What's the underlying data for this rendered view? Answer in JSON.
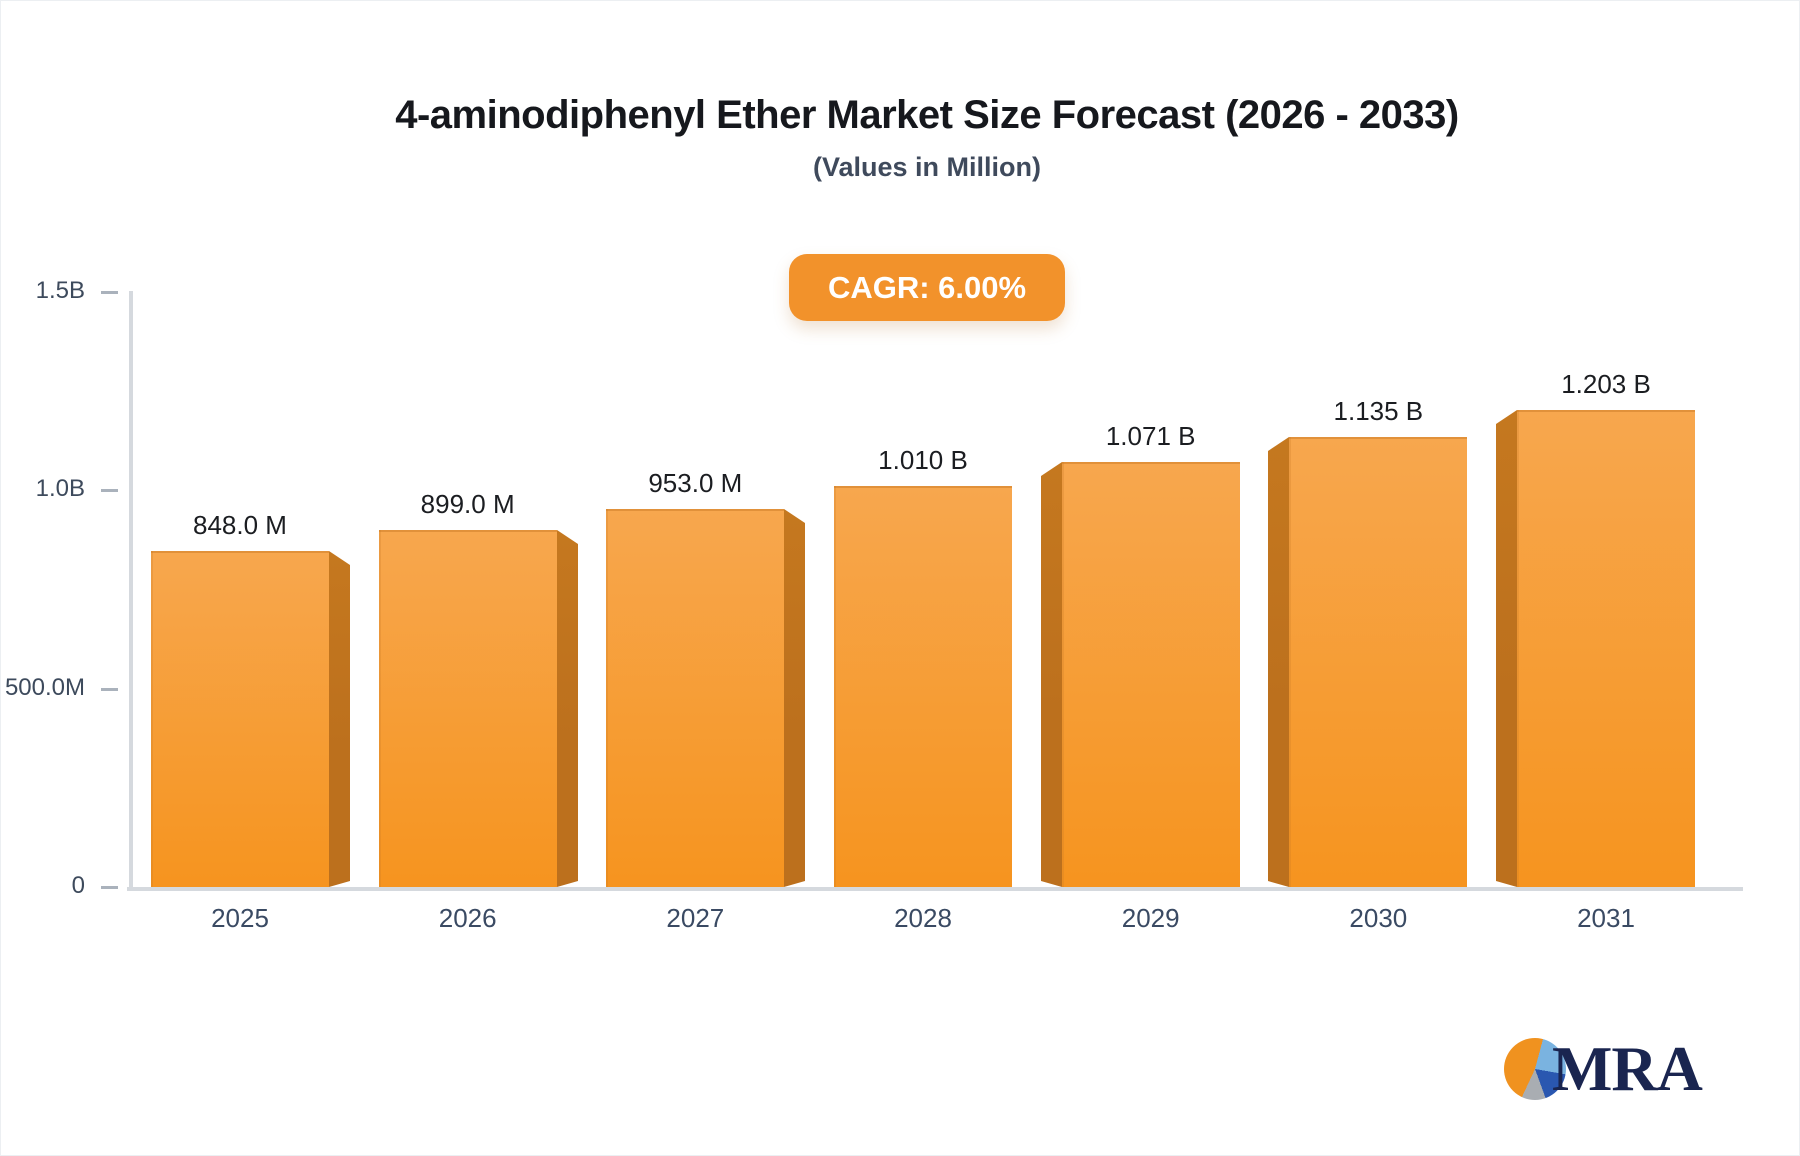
{
  "header": {
    "title": "4-aminodiphenyl Ether Market Size Forecast (2026 - 2033)",
    "subtitle": "(Values in Million)",
    "cagr_label": "CAGR: 6.00%"
  },
  "chart_data": {
    "type": "bar",
    "title": "4-aminodiphenyl Ether Market Size Forecast (2026 - 2033)",
    "subtitle": "(Values in Million)",
    "cagr": "6.00%",
    "categories": [
      "2025",
      "2026",
      "2027",
      "2028",
      "2029",
      "2030",
      "2031"
    ],
    "values_millions": [
      848,
      899,
      953,
      1010,
      1071,
      1135,
      1203
    ],
    "value_labels": [
      "848.0 M",
      "899.0 M",
      "953.0 M",
      "1.010 B",
      "1.071 B",
      "1.135 B",
      "1.203 B"
    ],
    "ylim_millions": [
      0,
      1500
    ],
    "y_ticks": [
      {
        "label": "1.5B",
        "value": 1500
      },
      {
        "label": "1.0B",
        "value": 1000
      },
      {
        "label": "500.0M",
        "value": 500
      },
      {
        "label": "0",
        "value": 0
      }
    ],
    "xlabel": "",
    "ylabel": "",
    "grid": false,
    "legend": false
  },
  "logo": {
    "text": "MRA",
    "icon": "pie-chart-icon"
  },
  "colors": {
    "title": "#16181d",
    "subtitle": "#3f4a5c",
    "badge_bg": "#f2922b",
    "bar_top": "#f7a74e",
    "bar_bottom": "#f6941f",
    "bar_side": "#bc701d",
    "axis": "#d5d9de",
    "tick": "#aab2bc",
    "tick_label": "#3d4a5c",
    "value_label": "#1b1d21",
    "year_label": "#3a4a63",
    "logo_navy": "#1a2550",
    "logo_orange": "#f0921f",
    "logo_lightblue": "#7ab3e0",
    "logo_blue": "#2a57b0",
    "logo_gray": "#a9adb2"
  }
}
